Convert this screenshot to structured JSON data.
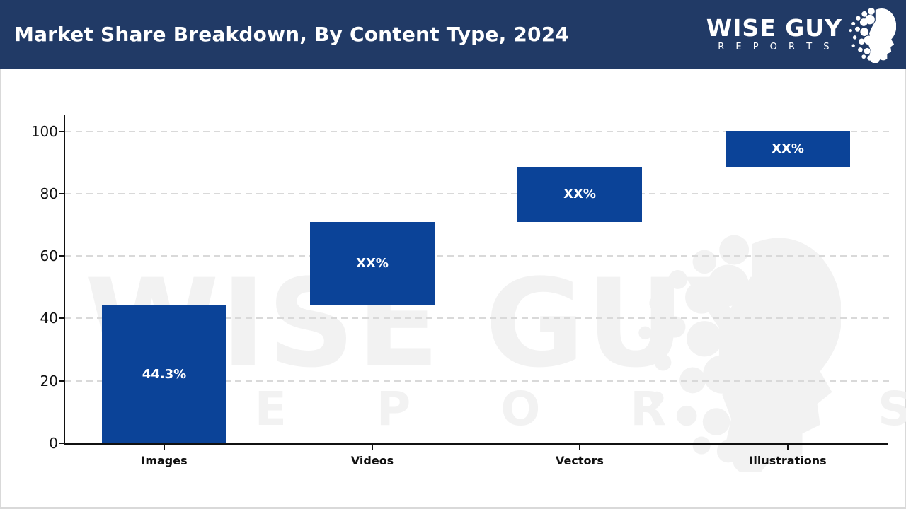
{
  "header": {
    "title": "Market Share Breakdown, By Content Type, 2024",
    "logo": {
      "line1": "WISE GUY",
      "line2": "R E P O R T S"
    }
  },
  "watermark": {
    "line1": "WISE GUY",
    "line2": "R E P O R T S"
  },
  "chart_data": {
    "type": "bar",
    "subtype": "waterfall",
    "title": "Market Share Breakdown, By Content Type, 2024",
    "categories": [
      "Images",
      "Videos",
      "Vectors",
      "Illustrations"
    ],
    "segments": [
      {
        "category": "Images",
        "start": 0,
        "end": 44.3,
        "label": "44.3%"
      },
      {
        "category": "Videos",
        "start": 44.3,
        "end": 70.9,
        "label": "XX%"
      },
      {
        "category": "Vectors",
        "start": 70.9,
        "end": 88.6,
        "label": "XX%"
      },
      {
        "category": "Illustrations",
        "start": 88.6,
        "end": 100,
        "label": "XX%"
      }
    ],
    "yticks": [
      0,
      20,
      40,
      60,
      80,
      100
    ],
    "ylim": [
      0,
      105
    ],
    "xlabel": "",
    "ylabel": "",
    "grid": "horizontal-dashed",
    "legend": "none",
    "bar_color": "#0b4398",
    "bar_label_color": "#ffffff"
  },
  "colors": {
    "header_bg": "#213a66",
    "bar": "#0b4398",
    "bar_label": "#ffffff",
    "grid": "#d9d9d9",
    "axis": "#111111",
    "watermark": "#f2f2f2"
  }
}
